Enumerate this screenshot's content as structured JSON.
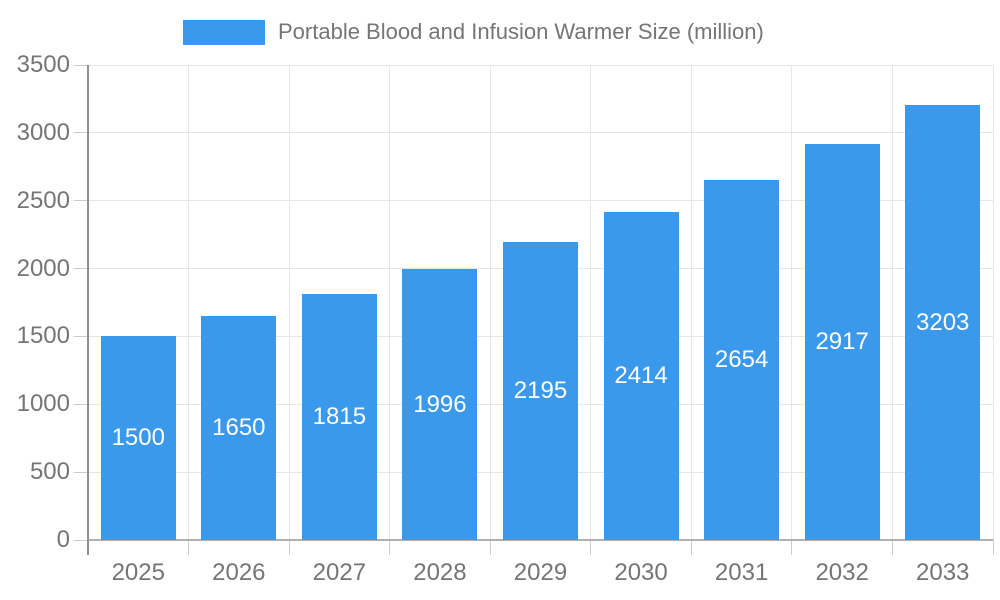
{
  "legend": {
    "label": "Portable Blood and Infusion Warmer Size (million)"
  },
  "chart_data": {
    "type": "bar",
    "title": "Portable Blood and Infusion Warmer Size (million)",
    "legend_position": "top",
    "categories": [
      "2025",
      "2026",
      "2027",
      "2028",
      "2029",
      "2030",
      "2031",
      "2032",
      "2033"
    ],
    "series": [
      {
        "name": "Portable Blood and Infusion Warmer Size (million)",
        "values": [
          1500,
          1650,
          1815,
          1996,
          2195,
          2414,
          2654,
          2917,
          3203
        ]
      }
    ],
    "xlabel": "",
    "ylabel": "",
    "ylim": [
      0,
      3500
    ],
    "yticks": [
      0,
      500,
      1000,
      1500,
      2000,
      2500,
      3000,
      3500
    ],
    "grid": true,
    "data_labels_position": "inside-center"
  },
  "colors": {
    "bar": "#3b99ec",
    "bar_label": "#ffffff",
    "axis_text": "#757575",
    "legend_text": "#757575",
    "gridline": "#e6e6e6",
    "baseline": "#b0b0b0",
    "axis_line": "#8f8f8f",
    "tick": "#cccccc",
    "background": "#ffffff"
  }
}
